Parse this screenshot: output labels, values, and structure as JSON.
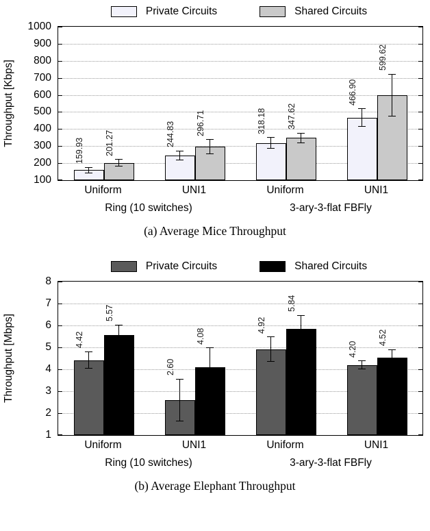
{
  "chart_data": [
    {
      "type": "bar",
      "caption": "(a)  Average Mice Throughput",
      "ylabel": "Throughput [Kbps]",
      "ylim": [
        100,
        1000
      ],
      "yticks": [
        100,
        200,
        300,
        400,
        500,
        600,
        700,
        800,
        900,
        1000
      ],
      "grid": "dotted-horizontal",
      "legend_position": "top-center",
      "categories": [
        "Uniform",
        "UNI1",
        "Uniform",
        "UNI1"
      ],
      "sections": [
        "Ring (10 switches)",
        "3-ary-3-flat FBFly"
      ],
      "series": [
        {
          "name": "Private Circuits",
          "color": "#f2f2fb",
          "values": [
            159.93,
            244.83,
            318.18,
            466.9
          ],
          "errors": [
            16,
            28,
            32,
            52
          ],
          "labels": [
            "159.93",
            "244.83",
            "318.18",
            "466.90"
          ]
        },
        {
          "name": "Shared Circuits",
          "color": "#c9c9c9",
          "values": [
            201.27,
            296.71,
            347.62,
            599.62
          ],
          "errors": [
            20,
            42,
            28,
            122
          ],
          "labels": [
            "201.27",
            "296.71",
            "347.62",
            "599.62"
          ]
        }
      ]
    },
    {
      "type": "bar",
      "caption": "(b)  Average Elephant Throughput",
      "ylabel": "Throughput [Mbps]",
      "ylim": [
        1,
        8
      ],
      "yticks": [
        1,
        2,
        3,
        4,
        5,
        6,
        7,
        8
      ],
      "grid": "dotted-horizontal",
      "legend_position": "top-center",
      "categories": [
        "Uniform",
        "UNI1",
        "Uniform",
        "UNI1"
      ],
      "sections": [
        "Ring (10 switches)",
        "3-ary-3-flat FBFly"
      ],
      "series": [
        {
          "name": "Private Circuits",
          "color": "#5a5a5a",
          "values": [
            4.42,
            2.6,
            4.92,
            4.2
          ],
          "errors": [
            0.38,
            0.95,
            0.55,
            0.18
          ],
          "labels": [
            "4.42",
            "2.60",
            "4.92",
            "4.20"
          ]
        },
        {
          "name": "Shared Circuits",
          "color": "#000000",
          "values": [
            5.57,
            4.08,
            5.84,
            4.52
          ],
          "errors": [
            0.45,
            0.9,
            0.62,
            0.38
          ],
          "labels": [
            "5.57",
            "4.08",
            "5.84",
            "4.52"
          ]
        }
      ]
    }
  ]
}
